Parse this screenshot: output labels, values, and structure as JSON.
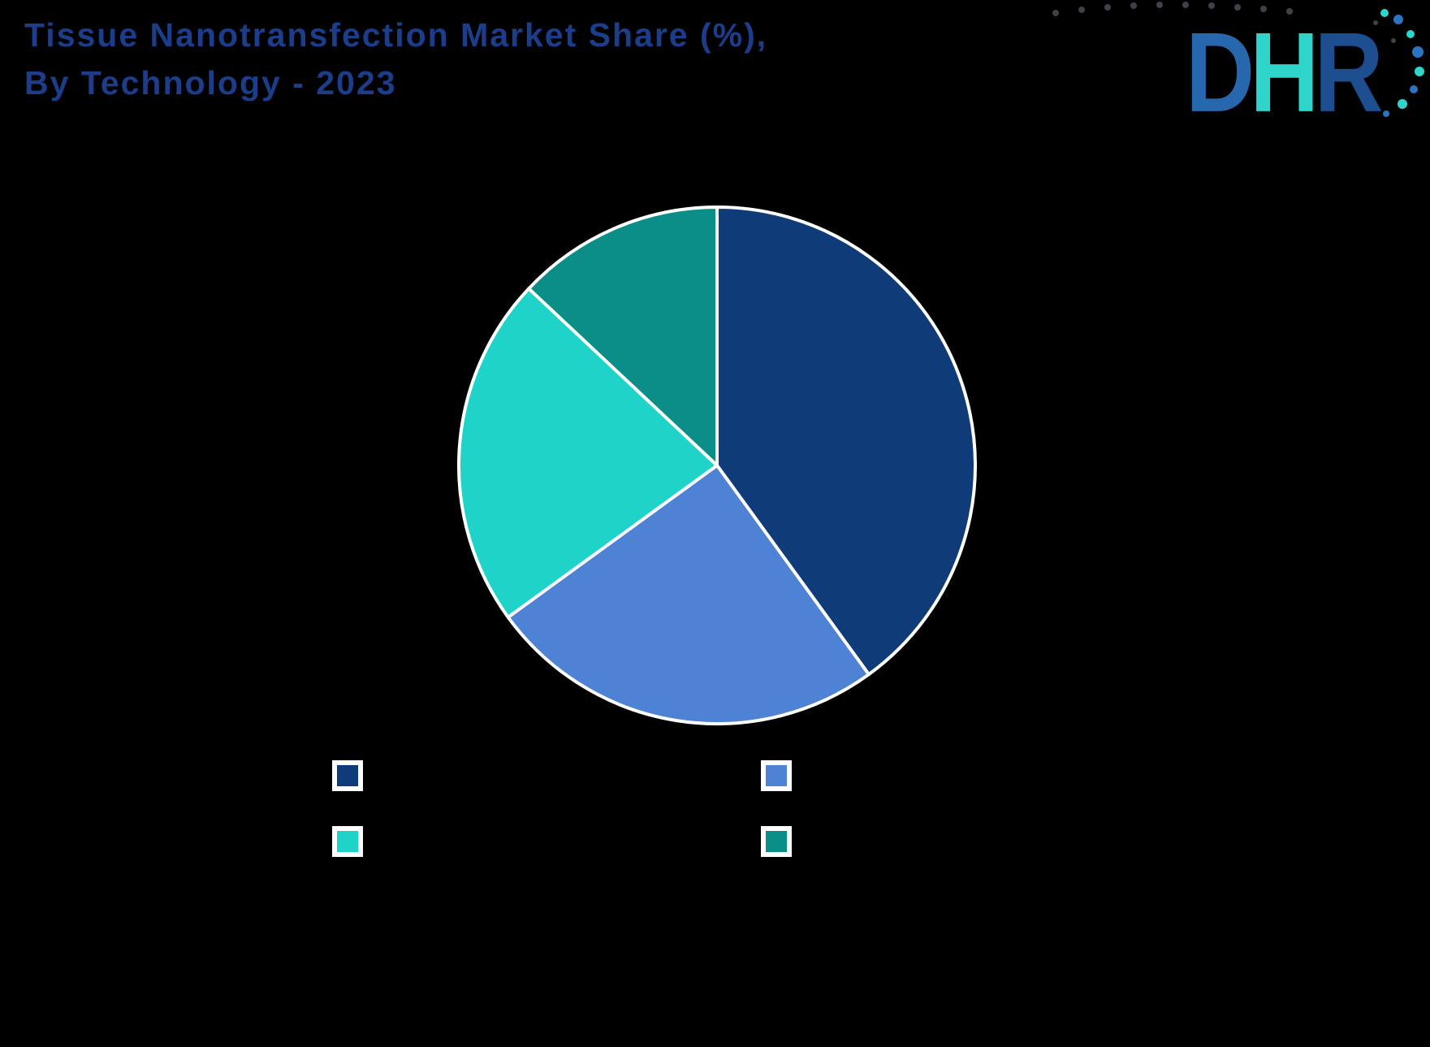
{
  "header": {
    "title_line1": "Tissue Nanotransfection Market Share (%),",
    "title_line2": "By Technology - 2023"
  },
  "logo": {
    "letters": [
      {
        "char": "D",
        "color": "#2767AE"
      },
      {
        "char": "H",
        "color": "#2FD5CB"
      },
      {
        "char": "R",
        "color": "#1C4E90"
      }
    ]
  },
  "colors": {
    "background": "#000000",
    "title": "#1B3D8A",
    "pie-stroke": "#FFFFFF",
    "legend-border": "#FFFFFF",
    "logo-dot-blue": "#2B74C0",
    "logo-dot-teal": "#2FD5CB",
    "logo-dot-gray": "#3E4248"
  },
  "chart_data": {
    "type": "pie",
    "title": "Tissue Nanotransfection Market Share (%), By Technology - 2023",
    "unit": "%",
    "direction": "clockwise",
    "start_angle": "12 o'clock",
    "legend_position": "bottom",
    "labels_visible": false,
    "slices": [
      {
        "label": "",
        "value": 40,
        "color": "#0F3C78"
      },
      {
        "label": "",
        "value": 25,
        "color": "#4E82D4"
      },
      {
        "label": "",
        "value": 22,
        "color": "#1FD3C9"
      },
      {
        "label": "",
        "value": 13,
        "color": "#0A8E87"
      }
    ]
  },
  "legend": {
    "items": [
      {
        "label": ""
      },
      {
        "label": ""
      },
      {
        "label": ""
      },
      {
        "label": ""
      }
    ]
  }
}
